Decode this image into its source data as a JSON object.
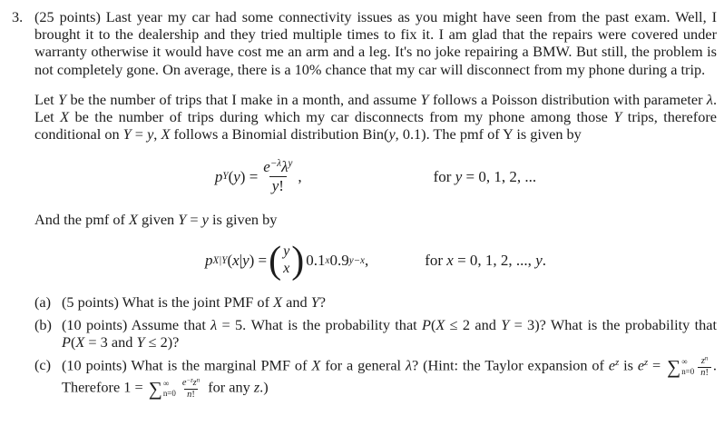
{
  "colors": {
    "background": "#ffffff",
    "text": "#1c1c1c"
  },
  "problem": {
    "number": "3.",
    "intro_segments": [
      {
        "t": "(25 points) Last year my car had some connectivity issues as you might have seen from the past exam. Well, I brought it to the dealership and they tried multiple times to fix it. I am glad that the repairs were covered under warranty otherwise it would have cost me an arm and a leg. It's no joke repairing a BMW. But still, the problem is not completely gone. On average, there is a 10% chance that my car will disconnect from my phone during a trip."
      }
    ],
    "setup_segments": [
      {
        "t": "Let "
      },
      {
        "t": "Y",
        "s": "i"
      },
      {
        "t": " be the number of trips that I make in a month, and assume "
      },
      {
        "t": "Y",
        "s": "i"
      },
      {
        "t": " follows a Poisson distribution with parameter "
      },
      {
        "t": "λ",
        "s": "i"
      },
      {
        "t": ". Let "
      },
      {
        "t": "X",
        "s": "i"
      },
      {
        "t": " be the number of trips during which my car disconnects from my phone among those "
      },
      {
        "t": "Y",
        "s": "i"
      },
      {
        "t": " trips, therefore conditional on "
      },
      {
        "t": "Y",
        "s": "i"
      },
      {
        "t": " = "
      },
      {
        "t": "y",
        "s": "i"
      },
      {
        "t": ", "
      },
      {
        "t": "X",
        "s": "i"
      },
      {
        "t": " follows a Binomial distribution Bin("
      },
      {
        "t": "y",
        "s": "i"
      },
      {
        "t": ", 0.1). The pmf of Y is given by"
      }
    ],
    "poisson_formula": {
      "eq": [
        {
          "t": "p",
          "s": "i"
        },
        {
          "t": "Y",
          "s": "subi"
        },
        {
          "t": "("
        },
        {
          "t": "y",
          "s": "i"
        },
        {
          "t": ") = "
        },
        {
          "frac": {
            "num": [
              {
                "t": "e",
                "s": "i"
              },
              {
                "t": "−λ",
                "s": "supi"
              },
              {
                "t": "λ",
                "s": "i"
              },
              {
                "t": "y",
                "s": "supi"
              }
            ],
            "den": [
              {
                "t": "y",
                "s": "i"
              },
              {
                "t": "!"
              }
            ]
          }
        },
        {
          "t": ","
        }
      ],
      "cond": [
        {
          "t": "for "
        },
        {
          "t": "y",
          "s": "i"
        },
        {
          "t": " = 0, 1, 2, ..."
        }
      ]
    },
    "between_segments": [
      {
        "t": "And the pmf of "
      },
      {
        "t": "X",
        "s": "i"
      },
      {
        "t": " given "
      },
      {
        "t": "Y",
        "s": "i"
      },
      {
        "t": " = "
      },
      {
        "t": "y",
        "s": "i"
      },
      {
        "t": " is given by"
      }
    ],
    "binomial_formula": {
      "eq": [
        {
          "t": "p",
          "s": "i"
        },
        {
          "t": "X|Y",
          "s": "subi"
        },
        {
          "t": "("
        },
        {
          "t": "x",
          "s": "i"
        },
        {
          "t": "|"
        },
        {
          "t": "y",
          "s": "i"
        },
        {
          "t": ") = "
        },
        {
          "binom": {
            "left": "(",
            "right": ")",
            "top": [
              {
                "t": "y",
                "s": "i"
              }
            ],
            "bot": [
              {
                "t": "x",
                "s": "i"
              }
            ]
          }
        },
        {
          "t": "0.1"
        },
        {
          "t": "x",
          "s": "supi"
        },
        {
          "t": "0.9"
        },
        {
          "t": "y−x",
          "s": "supi"
        },
        {
          "t": ","
        }
      ],
      "cond": [
        {
          "t": "for "
        },
        {
          "t": "x",
          "s": "i"
        },
        {
          "t": " = 0, 1, 2, ..., "
        },
        {
          "t": "y",
          "s": "i"
        },
        {
          "t": "."
        }
      ]
    },
    "parts": [
      {
        "label": "(a)",
        "segments": [
          {
            "t": "(5 points) What is the joint PMF of "
          },
          {
            "t": "X",
            "s": "i"
          },
          {
            "t": " and "
          },
          {
            "t": "Y",
            "s": "i"
          },
          {
            "t": "?"
          }
        ]
      },
      {
        "label": "(b)",
        "segments": [
          {
            "t": "(10 points) Assume that "
          },
          {
            "t": "λ",
            "s": "i"
          },
          {
            "t": " = 5. What is the probability that "
          },
          {
            "t": "P",
            "s": "i"
          },
          {
            "t": "("
          },
          {
            "t": "X",
            "s": "i"
          },
          {
            "t": " ≤ 2 and "
          },
          {
            "t": "Y",
            "s": "i"
          },
          {
            "t": " = 3)? What is the probability that "
          },
          {
            "t": "P",
            "s": "i"
          },
          {
            "t": "("
          },
          {
            "t": "X",
            "s": "i"
          },
          {
            "t": " = 3 and "
          },
          {
            "t": "Y",
            "s": "i"
          },
          {
            "t": " ≤ 2)?"
          }
        ]
      },
      {
        "label": "(c)",
        "segments": [
          {
            "t": "(10 points) What is the marginal PMF of "
          },
          {
            "t": "X",
            "s": "i"
          },
          {
            "t": " for a general "
          },
          {
            "t": "λ",
            "s": "i"
          },
          {
            "t": "? (Hint: the Taylor expansion of "
          },
          {
            "t": "e",
            "s": "i"
          },
          {
            "t": "z",
            "s": "supi"
          },
          {
            "t": " is "
          },
          {
            "t": "e",
            "s": "i"
          },
          {
            "t": "z",
            "s": "supi"
          },
          {
            "t": " = "
          },
          {
            "limits": {
              "sym": "∑",
              "top": "∞",
              "bot": "n=0"
            }
          },
          {
            "frac": {
              "num": [
                {
                  "t": "z",
                  "s": "i"
                },
                {
                  "t": "n",
                  "s": "supi"
                }
              ],
              "den": [
                {
                  "t": "n",
                  "s": "i"
                },
                {
                  "t": "!"
                }
              ]
            }
          },
          {
            "t": ". Therefore 1 = "
          },
          {
            "limits": {
              "sym": "∑",
              "top": "∞",
              "bot": "n=0"
            }
          },
          {
            "frac": {
              "num": [
                {
                  "t": "e",
                  "s": "i"
                },
                {
                  "t": "−z",
                  "s": "supi"
                },
                {
                  "t": "z",
                  "s": "i"
                },
                {
                  "t": "n",
                  "s": "supi"
                }
              ],
              "den": [
                {
                  "t": "n",
                  "s": "i"
                },
                {
                  "t": "!"
                }
              ]
            }
          },
          {
            "t": " for any "
          },
          {
            "t": "z",
            "s": "i"
          },
          {
            "t": ".)"
          }
        ]
      }
    ]
  }
}
